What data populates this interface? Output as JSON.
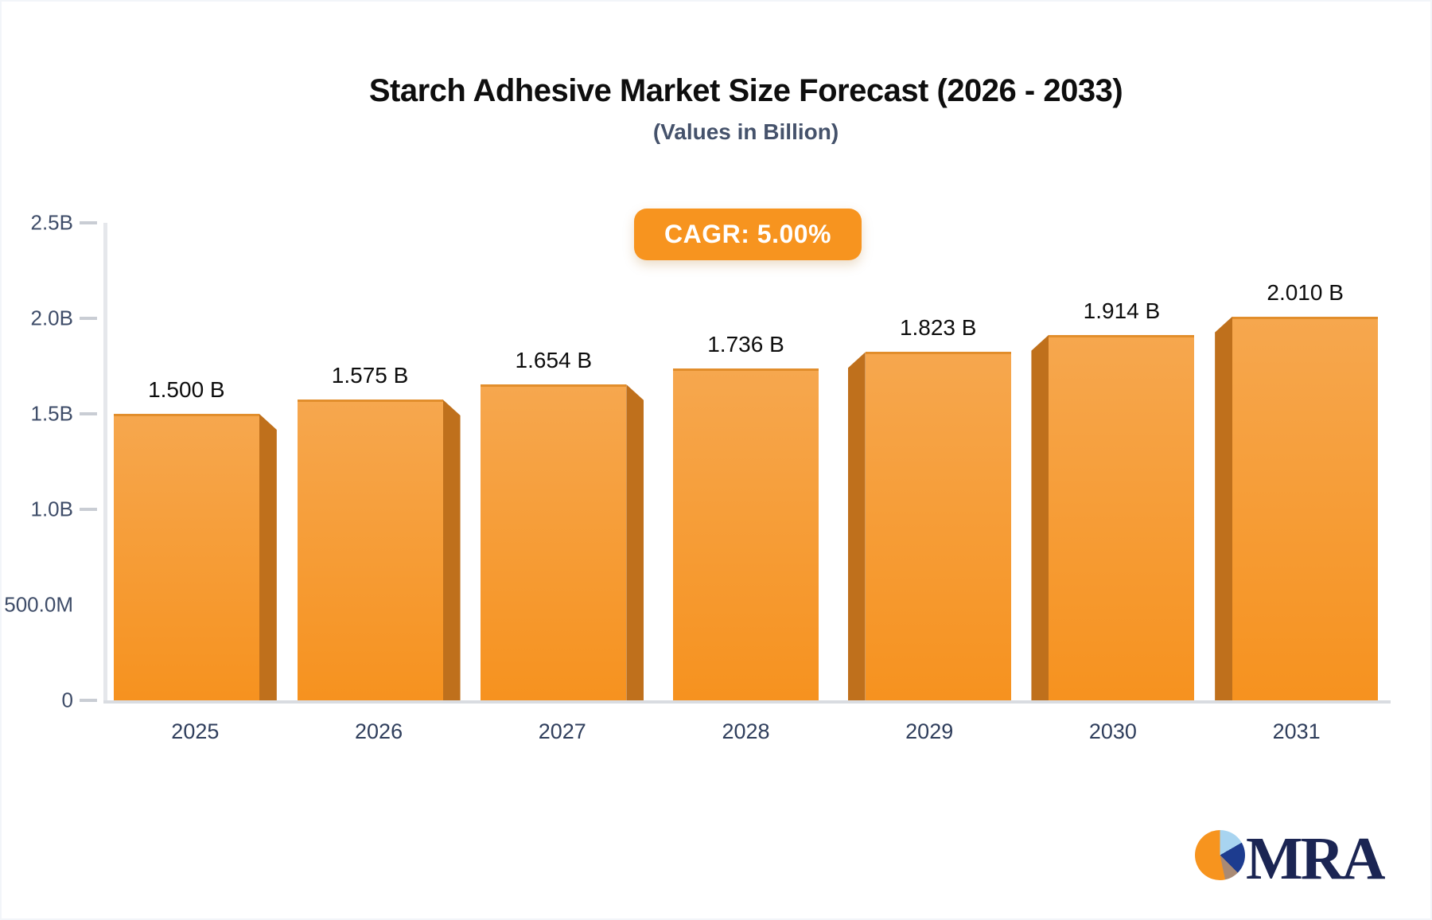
{
  "chart_data": {
    "type": "bar",
    "title": "Starch Adhesive Market Size Forecast (2026 - 2033)",
    "subtitle": "(Values in Billion)",
    "cagr_badge": "CAGR: 5.00%",
    "categories": [
      "2025",
      "2026",
      "2027",
      "2028",
      "2029",
      "2030",
      "2031"
    ],
    "values": [
      1.5,
      1.575,
      1.654,
      1.736,
      1.823,
      1.914,
      2.01
    ],
    "value_labels": [
      "1.500 B",
      "1.575 B",
      "1.654 B",
      "1.736 B",
      "1.823 B",
      "1.914 B",
      "2.010 B"
    ],
    "unit": "Billion USD",
    "ylim": [
      0,
      2.5
    ],
    "yticks": [
      {
        "value": 2.5,
        "label": "2.5B",
        "dash": true
      },
      {
        "value": 2.0,
        "label": "2.0B",
        "dash": true
      },
      {
        "value": 1.5,
        "label": "1.5B",
        "dash": true
      },
      {
        "value": 1.0,
        "label": "1.0B",
        "dash": true
      },
      {
        "value": 0.5,
        "label": "500.0M",
        "dash": false
      },
      {
        "value": 0,
        "label": "0",
        "dash": true
      }
    ],
    "grid": false,
    "legend": null,
    "bar_style": "3d-orange"
  },
  "colors": {
    "bar_gradient_top": "#f6a74e",
    "bar_gradient_bottom": "#f6921f",
    "bar_top_edge": "#e28e2c",
    "bar_side_shadow": "#bf701c",
    "badge_background": "#f7941f",
    "badge_text": "#ffffff",
    "title_text": "#0e0e0e",
    "subtitle_text": "#45526b",
    "axis_label_text": "#3e4c68",
    "axis_line": "#e5e7eb",
    "logo_navy": "#1b2553",
    "logo_pie_orange": "#f7941e",
    "logo_pie_lightblue": "#a8d4f0",
    "logo_pie_navy": "#1d3c8f",
    "logo_pie_tan": "#a98a74"
  },
  "logo": {
    "text": "MRA"
  }
}
